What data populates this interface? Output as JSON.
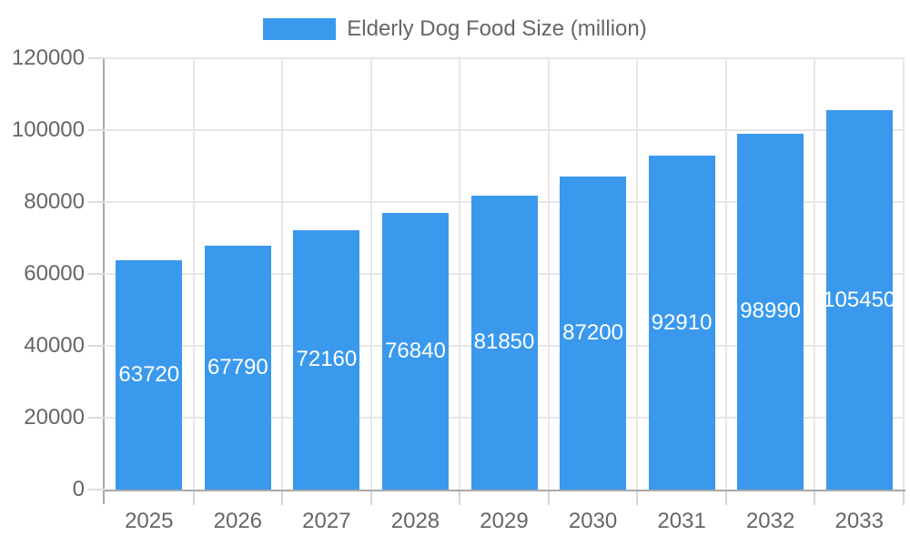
{
  "legend": {
    "label": "Elderly Dog Food Size (million)"
  },
  "chart_data": {
    "type": "bar",
    "title": "Elderly Dog Food Size (million)",
    "categories": [
      "2025",
      "2026",
      "2027",
      "2028",
      "2029",
      "2030",
      "2031",
      "2032",
      "2033"
    ],
    "series": [
      {
        "name": "Elderly Dog Food Size (million)",
        "values": [
          63720,
          67790,
          72160,
          76840,
          81850,
          87200,
          92910,
          98990,
          105450
        ]
      }
    ],
    "bar_labels_shown": true,
    "xlabel": "",
    "ylabel": "",
    "ylim": [
      0,
      120000
    ],
    "yticks": [
      0,
      20000,
      40000,
      60000,
      80000,
      100000,
      120000
    ],
    "grid": true,
    "legend_position": "top-center",
    "colors": {
      "bar": "#3A99EC",
      "bar_label_text": "#ffffff",
      "axis_text": "#666666",
      "gridline": "#e7e7e7",
      "axis_line": "#a9a9a9",
      "tick": "#d9d9d9",
      "background": "#ffffff"
    }
  }
}
